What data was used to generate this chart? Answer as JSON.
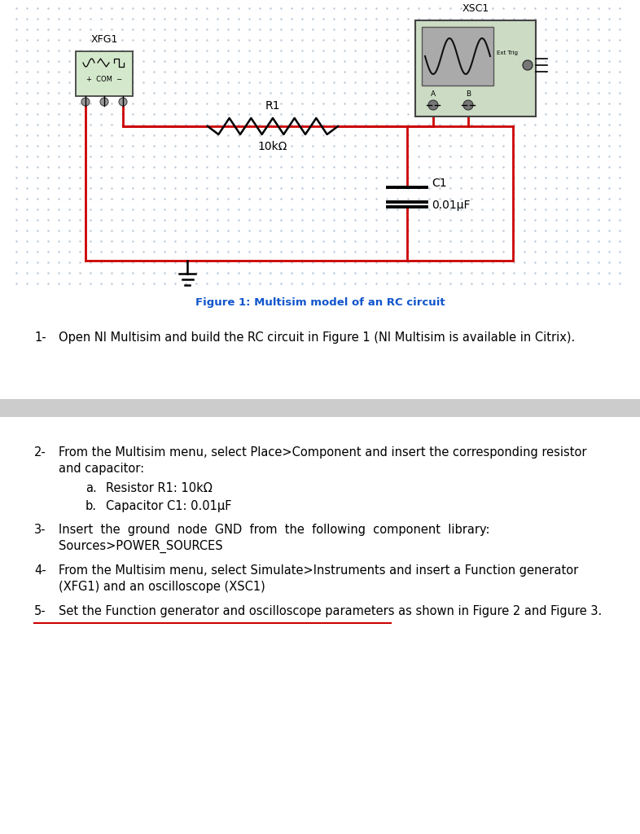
{
  "bg_color": "#ffffff",
  "dot_color": "#b8c8d8",
  "wire_color": "#cc0000",
  "xfg1_label": "XFG1",
  "xsc1_label": "XSC1",
  "r1_label": "R1",
  "r1_value": "10kΩ",
  "c1_label": "C1",
  "c1_value": "0.01μF",
  "figure_caption": "Figure 1: Multisim model of an RC circuit",
  "caption_color": "#1155cc",
  "divider_color": "#c8c8c8",
  "font_size_body": 10.5,
  "font_size_small": 8.5
}
